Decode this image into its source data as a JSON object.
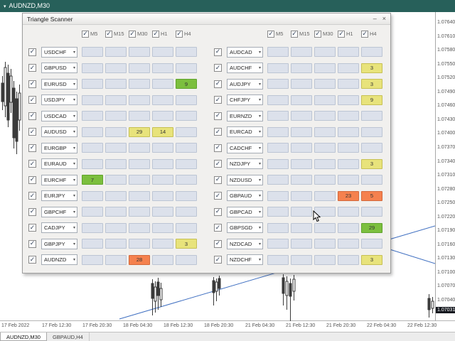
{
  "titlebar": {
    "symbol_label": "AUDNZD,M30",
    "dropdown_icon": "▾"
  },
  "scanner": {
    "title": "Triangle Scanner",
    "minimize_label": "–",
    "close_label": "×",
    "timeframes": [
      "M5",
      "M15",
      "M30",
      "H1",
      "H4"
    ],
    "cell_colors": {
      "default": "#dce1eb",
      "green": "#7cbf3e",
      "yellow": "#e8e37b",
      "orange": "#f5814e"
    },
    "columns": [
      {
        "rows": [
          {
            "pair": "USDCHF",
            "cells": [
              null,
              null,
              null,
              null,
              null
            ]
          },
          {
            "pair": "GBPUSD",
            "cells": [
              null,
              null,
              null,
              null,
              null
            ]
          },
          {
            "pair": "EURUSD",
            "cells": [
              null,
              null,
              null,
              null,
              {
                "value": "9",
                "color": "green"
              }
            ]
          },
          {
            "pair": "USDJPY",
            "cells": [
              null,
              null,
              null,
              null,
              null
            ]
          },
          {
            "pair": "USDCAD",
            "cells": [
              null,
              null,
              null,
              null,
              null
            ]
          },
          {
            "pair": "AUDUSD",
            "cells": [
              null,
              null,
              {
                "value": "29",
                "color": "yellow"
              },
              {
                "value": "14",
                "color": "yellow"
              },
              null
            ]
          },
          {
            "pair": "EURGBP",
            "cells": [
              null,
              null,
              null,
              null,
              null
            ]
          },
          {
            "pair": "EURAUD",
            "cells": [
              null,
              null,
              null,
              null,
              null
            ]
          },
          {
            "pair": "EURCHF",
            "cells": [
              {
                "value": "7",
                "color": "green"
              },
              null,
              null,
              null,
              null
            ]
          },
          {
            "pair": "EURJPY",
            "cells": [
              null,
              null,
              null,
              null,
              null
            ]
          },
          {
            "pair": "GBPCHF",
            "cells": [
              null,
              null,
              null,
              null,
              null
            ]
          },
          {
            "pair": "CADJPY",
            "cells": [
              null,
              null,
              null,
              null,
              null
            ]
          },
          {
            "pair": "GBPJPY",
            "cells": [
              null,
              null,
              null,
              null,
              {
                "value": "3",
                "color": "yellow"
              }
            ]
          },
          {
            "pair": "AUDNZD",
            "cells": [
              null,
              null,
              {
                "value": "28",
                "color": "orange"
              },
              null,
              null
            ]
          }
        ]
      },
      {
        "rows": [
          {
            "pair": "AUDCAD",
            "cells": [
              null,
              null,
              null,
              null,
              null
            ]
          },
          {
            "pair": "AUDCHF",
            "cells": [
              null,
              null,
              null,
              null,
              {
                "value": "3",
                "color": "yellow"
              }
            ]
          },
          {
            "pair": "AUDJPY",
            "cells": [
              null,
              null,
              null,
              null,
              {
                "value": "3",
                "color": "yellow"
              }
            ]
          },
          {
            "pair": "CHFJPY",
            "cells": [
              null,
              null,
              null,
              null,
              {
                "value": "9",
                "color": "yellow"
              }
            ]
          },
          {
            "pair": "EURNZD",
            "cells": [
              null,
              null,
              null,
              null,
              null
            ]
          },
          {
            "pair": "EURCAD",
            "cells": [
              null,
              null,
              null,
              null,
              null
            ]
          },
          {
            "pair": "CADCHF",
            "cells": [
              null,
              null,
              null,
              null,
              null
            ]
          },
          {
            "pair": "NZDJPY",
            "cells": [
              null,
              null,
              null,
              null,
              {
                "value": "3",
                "color": "yellow"
              }
            ]
          },
          {
            "pair": "NZDUSD",
            "cells": [
              null,
              null,
              null,
              null,
              null
            ]
          },
          {
            "pair": "GBPAUD",
            "cells": [
              null,
              null,
              null,
              {
                "value": "23",
                "color": "orange"
              },
              {
                "value": "5",
                "color": "orange"
              }
            ]
          },
          {
            "pair": "GBPCAD",
            "cells": [
              null,
              null,
              null,
              null,
              null
            ]
          },
          {
            "pair": "GBPSGD",
            "cells": [
              null,
              null,
              null,
              null,
              {
                "value": "29",
                "color": "green"
              }
            ]
          },
          {
            "pair": "NZDCAD",
            "cells": [
              null,
              null,
              null,
              null,
              null
            ]
          },
          {
            "pair": "NZDCHF",
            "cells": [
              null,
              null,
              null,
              null,
              {
                "value": "3",
                "color": "yellow"
              }
            ]
          }
        ]
      }
    ]
  },
  "chart": {
    "price_labels": [
      "1.07640",
      "1.07610",
      "1.07580",
      "1.07550",
      "1.07520",
      "1.07490",
      "1.07460",
      "1.07430",
      "1.07400",
      "1.07370",
      "1.07340",
      "1.07310",
      "1.07280",
      "1.07250",
      "1.07220",
      "1.07190",
      "1.07160",
      "1.07130",
      "1.07100",
      "1.07070",
      "1.07040"
    ],
    "current_price": "1.07031",
    "time_labels": [
      "17 Feb 2022",
      "17 Feb 12:30",
      "17 Feb 20:30",
      "18 Feb 04:30",
      "18 Feb 12:30",
      "18 Feb 20:30",
      "21 Feb 04:30",
      "21 Feb 12:30",
      "21 Feb 20:30",
      "22 Feb 04:30",
      "22 Feb 12:30"
    ],
    "trendline_color": "#3f6fc1"
  },
  "tabs": [
    {
      "label": "AUDNZD,M30",
      "active": true
    },
    {
      "label": "GBPAUD,H4",
      "active": false
    }
  ]
}
